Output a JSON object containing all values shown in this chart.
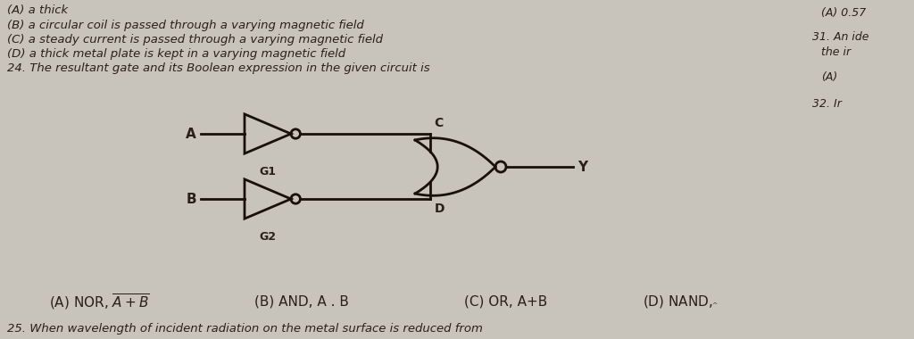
{
  "title_line1": "(A) a thick",
  "title_line2": "(B) a circular coil is passed through a varying magnetic field",
  "title_line3": "(C) a steady current is passed through a varying magnetic field",
  "title_line4": "(D) a thick metal plate is kept in a varying magnetic field",
  "question": "24. The resultant gate and its Boolean expression in the given circuit is",
  "bg_color": "#c8c4bb",
  "text_color": "#2a2018",
  "gate_color": "#1a1008",
  "label_A": "A",
  "label_B": "B",
  "label_G1": "G1",
  "label_G2": "G2",
  "label_C": "C",
  "label_D": "D",
  "label_Y": "Y",
  "right_col_text": [
    "(A) 0.57",
    "31. An ide",
    "the ir",
    "(A)",
    "32. Ir"
  ],
  "opt_A": "(A) NOR, $\\overline{A+B}$",
  "opt_B": "(B) AND, A . B",
  "opt_C": "(C) OR, A+B",
  "opt_D": "(D) NAND,",
  "bottom_text": "25. When wavelength of incident radiation on the metal surface is reduced from"
}
